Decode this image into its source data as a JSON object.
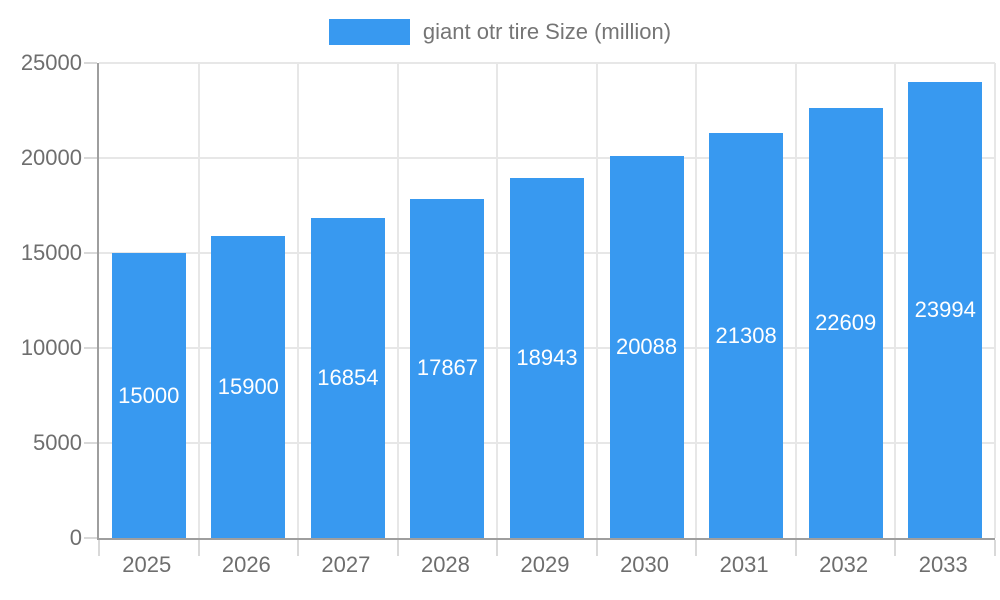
{
  "chart_data": {
    "type": "bar",
    "title": "",
    "legend": "giant otr tire Size (million)",
    "legend_position": "top-center",
    "categories": [
      "2025",
      "2026",
      "2027",
      "2028",
      "2029",
      "2030",
      "2031",
      "2032",
      "2033"
    ],
    "values": [
      15000,
      15900,
      16854,
      17867,
      18943,
      20088,
      21308,
      22609,
      23994
    ],
    "xlabel": "",
    "ylabel": "",
    "ylim": [
      0,
      25000
    ],
    "yticks": [
      0,
      5000,
      10000,
      15000,
      20000,
      25000
    ],
    "grid": true,
    "value_labels": "inside-center-white"
  },
  "colors": {
    "bar": "#3899F0",
    "gridline": "#e7e7e7",
    "axis": "#9e9e9e",
    "axis_text": "#6e6e6e",
    "legend_text": "#757575",
    "bar_label_text": "#ffffff",
    "background": "#ffffff"
  }
}
